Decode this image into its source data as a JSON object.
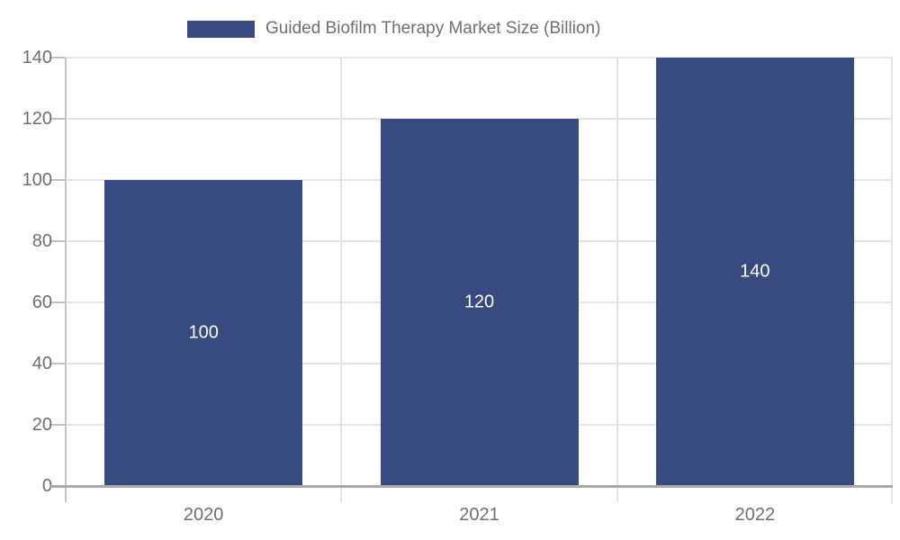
{
  "legend": {
    "label": "Guided Biofilm Therapy Market Size (Billion)"
  },
  "colors": {
    "bar_fill": "#384B80",
    "gridline": "#e4e4e4",
    "y_axis_line": "#c4c4c4",
    "x_axis_line": "#a8a8a8",
    "tick_mark": "#c4c4c4",
    "axis_text": "#6f6f6f",
    "bar_label_text": "#ffffff",
    "background": "#ffffff"
  },
  "chart_data": {
    "type": "bar",
    "categories": [
      "2020",
      "2021",
      "2022"
    ],
    "values": [
      100,
      120,
      140
    ],
    "bar_labels": [
      "100",
      "120",
      "140"
    ],
    "series": [
      {
        "name": "Guided Biofilm Therapy Market Size (Billion)",
        "values": [
          100,
          120,
          140
        ]
      }
    ],
    "title": "",
    "legend_label": "Guided Biofilm Therapy Market Size (Billion)",
    "xlabel": "",
    "ylabel": "",
    "ylim": [
      0,
      140
    ],
    "yticks": [
      0,
      20,
      40,
      60,
      80,
      100,
      120,
      140
    ],
    "grid": "horizontal gridlines + vertical category-boundary gridlines",
    "legend_position": "top",
    "bar_value_label_position": "center-inside",
    "bar_color": "#384B80"
  }
}
